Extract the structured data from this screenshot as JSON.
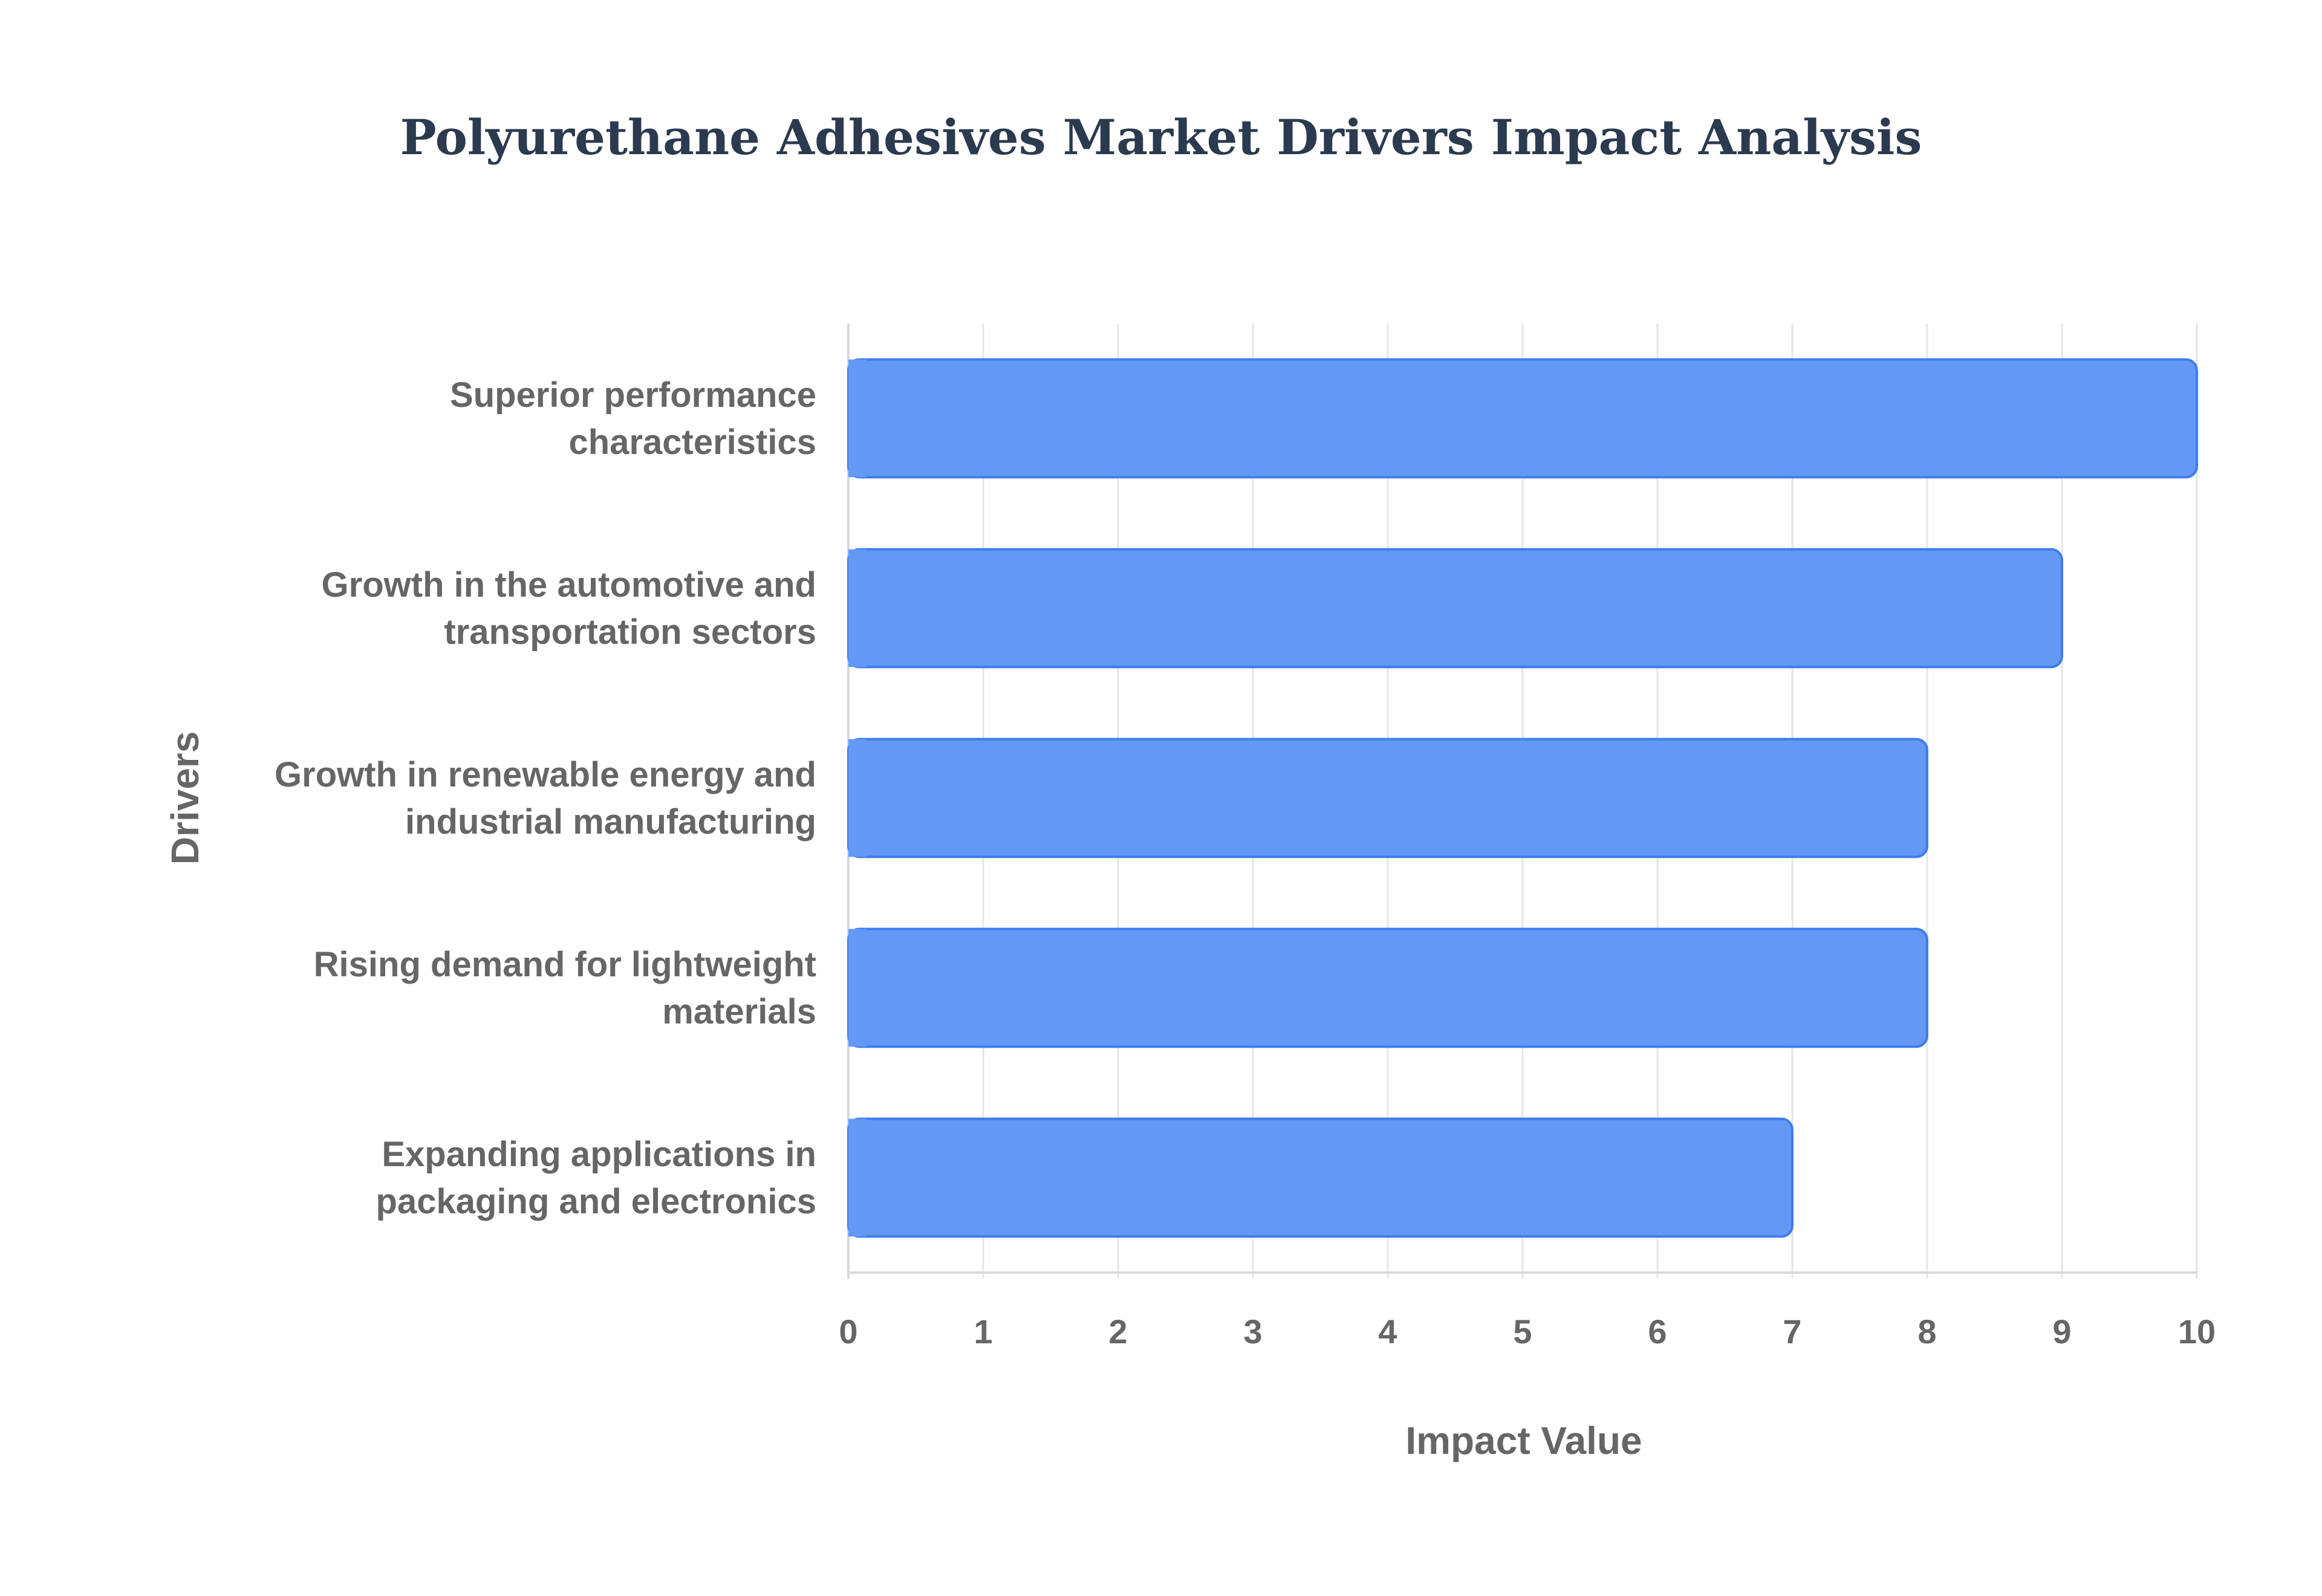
{
  "chart_data": {
    "type": "bar",
    "orientation": "horizontal",
    "title": "Polyurethane Adhesives Market Drivers Impact Analysis",
    "xlabel": "Impact Value",
    "ylabel": "Drivers",
    "xlim": [
      0,
      10
    ],
    "x_ticks": [
      "0",
      "1",
      "2",
      "3",
      "4",
      "5",
      "6",
      "7",
      "8",
      "9",
      "10"
    ],
    "grid": true,
    "categories": [
      [
        "Superior performance",
        "characteristics"
      ],
      [
        "Growth in the automotive and",
        "transportation sectors"
      ],
      [
        "Growth in renewable energy and",
        "industrial manufacturing"
      ],
      [
        "Rising demand for lightweight",
        "materials"
      ],
      [
        "Expanding applications in",
        "packaging and electronics"
      ]
    ],
    "values": [
      10,
      9,
      8,
      8,
      7
    ],
    "bar_color": "#6399f5",
    "bar_border_color": "#3d7cf0"
  }
}
